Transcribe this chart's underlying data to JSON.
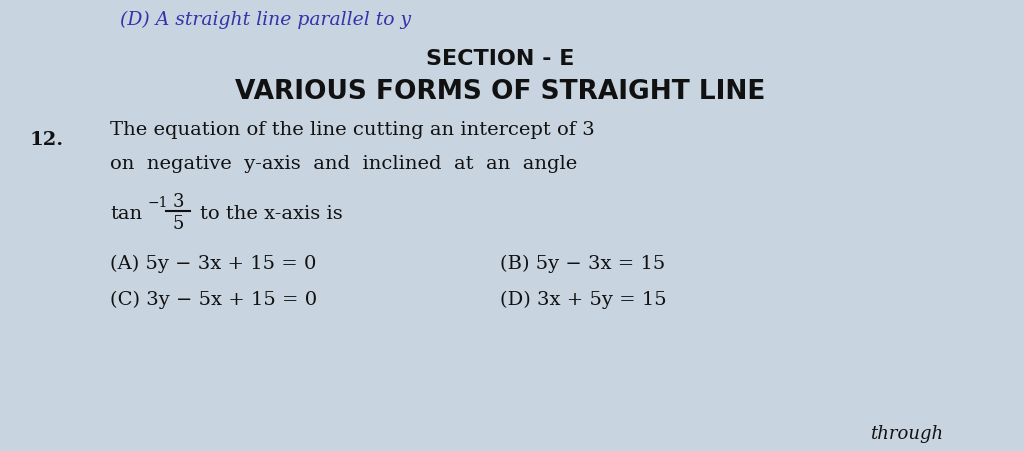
{
  "bg_color": "#c8d4e0",
  "text_color": "#111111",
  "top_d_text": "(D) A straight line parallel to y",
  "section_title": "SECTION - E",
  "section_subtitle": "VARIOUS FORMS OF STRAIGHT LINE",
  "question_num": "12.",
  "question_line1": "The equation of the line cutting an intercept of 3",
  "question_line2": "on  negative  y-axis  and  inclined  at  an  angle",
  "tan_prefix": "tan",
  "tan_exp": "−1",
  "frac_num": "3",
  "frac_den": "5",
  "tan_suffix": "to the x-axis is",
  "opt_A": "(A) 5y − 3x + 15 = 0",
  "opt_B": "(B) 5y − 3x = 15",
  "opt_C": "(C) 3y − 5x + 15 = 0",
  "opt_D": "(D) 3x + 5y = 15",
  "bottom_text": "through"
}
